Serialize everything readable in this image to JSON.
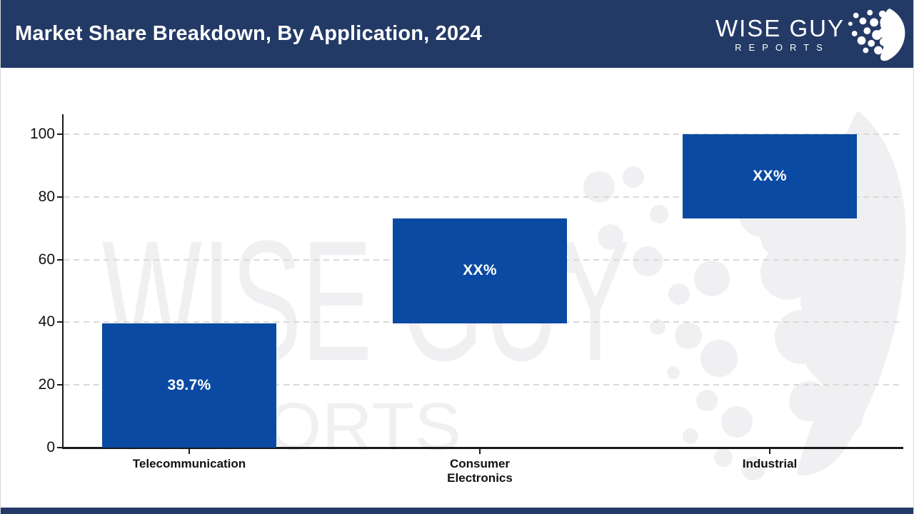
{
  "header": {
    "title": "Market Share Breakdown, By Application, 2024",
    "logo": {
      "line1": "WISE GUY",
      "line2": "REPORTS"
    }
  },
  "watermark": {
    "line1": "WISE GUY",
    "line2": "REPORTS"
  },
  "chart_data": {
    "type": "bar",
    "subtype": "stacked-waterfall",
    "title": "Market Share Breakdown, By Application, 2024",
    "categories": [
      "Telecommunication",
      "Consumer Electronics",
      "Industrial"
    ],
    "segments": [
      {
        "category": "Telecommunication",
        "cat_label": "Telecommunication",
        "start": 0,
        "end": 39.7,
        "label": "39.7%"
      },
      {
        "category": "Consumer Electronics",
        "cat_label": "Consumer\nElectronics",
        "start": 39.7,
        "end": 73.1,
        "label": "XX%"
      },
      {
        "category": "Industrial",
        "cat_label": "Industrial",
        "start": 73.1,
        "end": 100,
        "label": "XX%"
      }
    ],
    "yticks": [
      0,
      20,
      40,
      60,
      80,
      100
    ],
    "ylim": [
      0,
      105
    ],
    "xlabel": "",
    "ylabel": "",
    "grid": "horizontal-dashed",
    "legend": "none",
    "bar_color": "#0B4AA2"
  },
  "colors": {
    "header_bg": "#233A66",
    "footer_bg": "#233A66",
    "bar": "#0B4AA2",
    "grid": "#D9D9D9",
    "axis": "#1A1A1A",
    "watermark": "#F0F0F2"
  }
}
